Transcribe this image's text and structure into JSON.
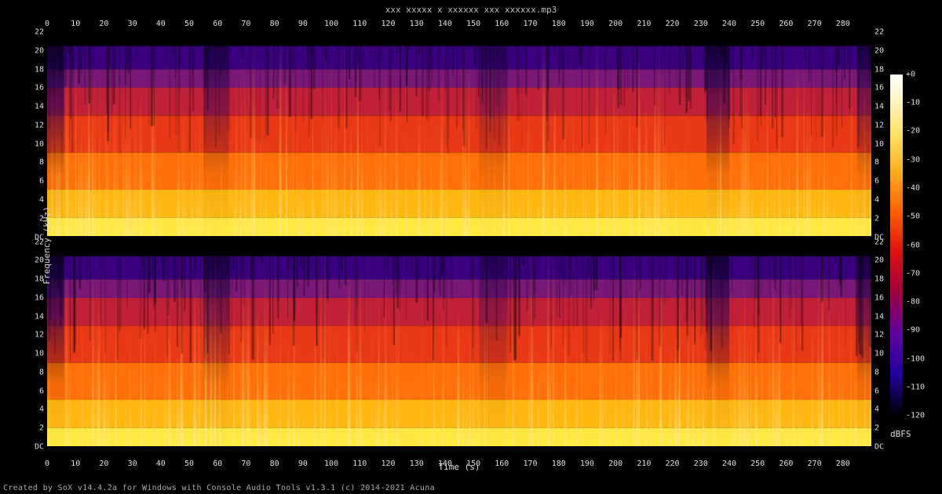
{
  "title": "xxx xxxxx x xxxxxx xxx xxxxxx.mp3",
  "footer": "Created by SoX v14.4.2a for Windows with Console Audio Tools v1.3.1  (c) 2014-2021 Acuna",
  "x_axis": {
    "label": "Time (s)",
    "min": 0,
    "max": 290,
    "ticks": [
      0,
      10,
      20,
      30,
      40,
      50,
      60,
      70,
      80,
      90,
      100,
      110,
      120,
      130,
      140,
      150,
      160,
      170,
      180,
      190,
      200,
      210,
      220,
      230,
      240,
      250,
      260,
      270,
      280
    ]
  },
  "y_axis": {
    "label": "Frequency (kHz)",
    "min": 0,
    "max": 22,
    "ticks": [
      {
        "v": 0,
        "l": "DC"
      },
      {
        "v": 2,
        "l": "2"
      },
      {
        "v": 4,
        "l": "4"
      },
      {
        "v": 6,
        "l": "6"
      },
      {
        "v": 8,
        "l": "8"
      },
      {
        "v": 10,
        "l": "10"
      },
      {
        "v": 12,
        "l": "12"
      },
      {
        "v": 14,
        "l": "14"
      },
      {
        "v": 16,
        "l": "16"
      },
      {
        "v": 18,
        "l": "18"
      },
      {
        "v": 20,
        "l": "20"
      },
      {
        "v": 22,
        "l": "22"
      }
    ]
  },
  "colorbar": {
    "label": "dBFS",
    "min": -120,
    "max": 0,
    "ticks": [
      0,
      -10,
      -20,
      -30,
      -40,
      -50,
      -60,
      -70,
      -80,
      -90,
      -100,
      -110,
      -120
    ],
    "stops": [
      {
        "p": 0.0,
        "c": "#ffffff"
      },
      {
        "p": 0.08,
        "c": "#fff4c0"
      },
      {
        "p": 0.18,
        "c": "#ffe060"
      },
      {
        "p": 0.28,
        "c": "#ffb020"
      },
      {
        "p": 0.4,
        "c": "#ff6000"
      },
      {
        "p": 0.52,
        "c": "#e01010"
      },
      {
        "p": 0.64,
        "c": "#a00040"
      },
      {
        "p": 0.76,
        "c": "#6000a0"
      },
      {
        "p": 0.88,
        "c": "#2000a0"
      },
      {
        "p": 1.0,
        "c": "#000000"
      }
    ]
  },
  "channels": 2,
  "spectrogram": {
    "band_colors": [
      {
        "from_khz": 22,
        "to_khz": 20.5,
        "c": "#000000"
      },
      {
        "from_khz": 20.5,
        "to_khz": 18,
        "c": "#3a0080"
      },
      {
        "from_khz": 18,
        "to_khz": 16,
        "c": "#7a1878"
      },
      {
        "from_khz": 16,
        "to_khz": 13,
        "c": "#c02038"
      },
      {
        "from_khz": 13,
        "to_khz": 9,
        "c": "#e83818"
      },
      {
        "from_khz": 9,
        "to_khz": 5,
        "c": "#ff7008"
      },
      {
        "from_khz": 5,
        "to_khz": 2,
        "c": "#ffb810"
      },
      {
        "from_khz": 2,
        "to_khz": 0,
        "c": "#ffe840"
      }
    ],
    "quiet_columns_s": [
      {
        "from": 0,
        "to": 6,
        "intensity": 0.85
      },
      {
        "from": 55,
        "to": 64,
        "intensity": 0.55
      },
      {
        "from": 152,
        "to": 162,
        "intensity": 0.4
      },
      {
        "from": 232,
        "to": 240,
        "intensity": 0.7
      },
      {
        "from": 285,
        "to": 290,
        "intensity": 0.6
      }
    ],
    "noise_seed": 7,
    "noise_stripes": 480
  },
  "background_color": "#000000",
  "text_color": "#dddddd"
}
